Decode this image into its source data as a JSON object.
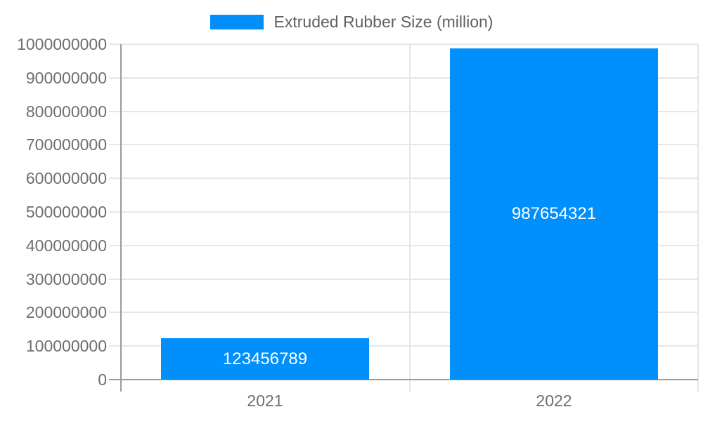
{
  "chart_data": {
    "type": "bar",
    "title": "",
    "legend": {
      "label": "Extruded Rubber Size (million)",
      "position": "top"
    },
    "categories": [
      "2021",
      "2022"
    ],
    "series": [
      {
        "name": "Extruded Rubber Size (million)",
        "values": [
          123456789,
          987654321
        ],
        "data_labels": [
          "123456789",
          "987654321"
        ]
      }
    ],
    "xlabel": "",
    "ylabel": "",
    "yaxis": {
      "min": 0,
      "max": 1000000000,
      "tick_step": 100000000,
      "tick_labels": [
        "0",
        "100000000",
        "200000000",
        "300000000",
        "400000000",
        "500000000",
        "600000000",
        "700000000",
        "800000000",
        "900000000",
        "1000000000"
      ]
    },
    "grid": true,
    "colors": {
      "bar": "#008FFB",
      "grid_line": "#e6e6e6",
      "axis_line": "#9b9b9b",
      "axis_text": "#6e6e6e",
      "legend_text": "#616161",
      "data_label_text": "#ffffff",
      "background": "#ffffff"
    }
  }
}
